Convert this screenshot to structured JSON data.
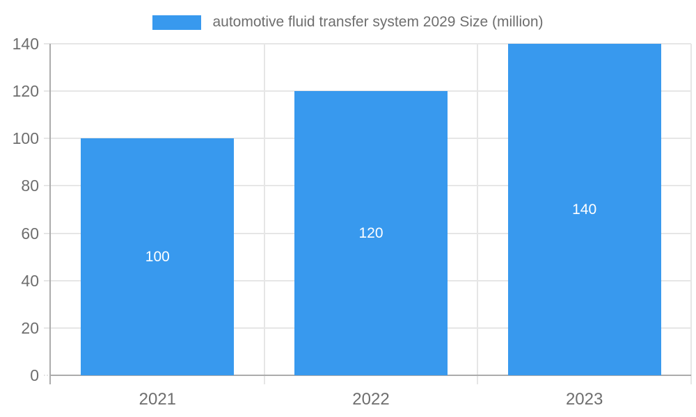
{
  "chart_data": {
    "type": "bar",
    "title": "automotive fluid transfer system 2029 Size (million)",
    "categories": [
      "2021",
      "2022",
      "2023"
    ],
    "values": [
      100,
      120,
      140
    ],
    "series": [
      {
        "name": "automotive fluid transfer system 2029 Size (million)",
        "values": [
          100,
          120,
          140
        ]
      }
    ],
    "data_labels": [
      "100",
      "120",
      "140"
    ],
    "xlabel": "",
    "ylabel": "",
    "ylim": [
      0,
      140
    ],
    "y_ticks": [
      0,
      20,
      40,
      60,
      80,
      100,
      120,
      140
    ],
    "grid": true,
    "legend_position": "top-center"
  },
  "colors": {
    "bar": "#3899EE",
    "gridline": "#E6E6E6",
    "axis": "#ABABAB",
    "tick_text": "#6E6E6E",
    "legend_text": "#6E6E6E",
    "data_label": "#FFFFFF",
    "background": "#FFFFFF"
  }
}
